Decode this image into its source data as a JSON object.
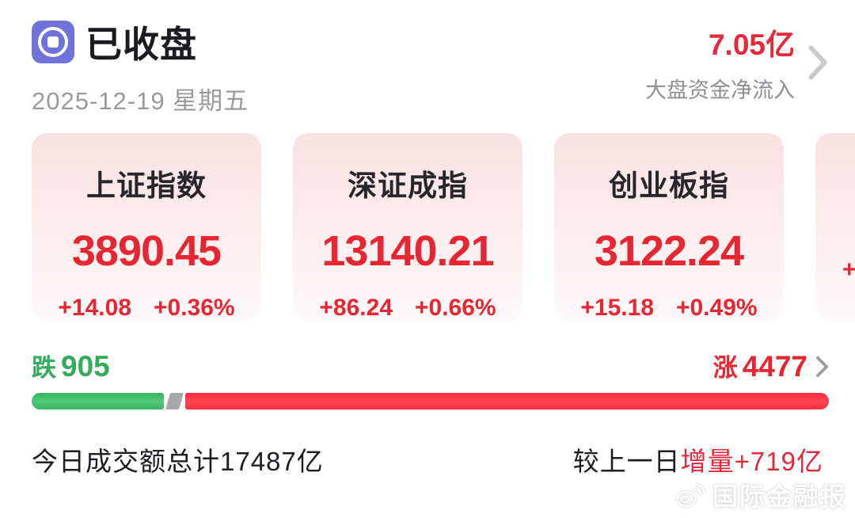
{
  "header": {
    "closed_title": "已收盘",
    "date": "2025-12-19 星期五",
    "net_inflow_value": "7.05亿",
    "net_inflow_label": "大盘资金净流入"
  },
  "indices": [
    {
      "name": "上证指数",
      "value": "3890.45",
      "change": "+14.08",
      "change_pct": "+0.36%"
    },
    {
      "name": "深证成指",
      "value": "13140.21",
      "change": "+86.24",
      "change_pct": "+0.66%"
    },
    {
      "name": "创业板指",
      "value": "3122.24",
      "change": "+15.18",
      "change_pct": "+0.49%"
    },
    {
      "name": "",
      "value": "",
      "change": "+",
      "change_pct": ""
    }
  ],
  "breadth": {
    "decliners_label": "跌",
    "decliners_count": "905",
    "advancers_label": "涨",
    "advancers_count": "4477",
    "bar": {
      "down_pct": 16.6,
      "flat_pct": 1.7
    }
  },
  "turnover": {
    "today_total": "今日成交额总计17487亿",
    "vs_prev_label": "较上一日",
    "vs_prev_delta": "增量+719亿"
  },
  "watermark": {
    "source": "国际金融报"
  },
  "colors": {
    "up_red_text": "#e62633",
    "inflow_red": "#e5293a",
    "down_green_text": "#35ab5d",
    "bar_green": "#3bb763",
    "bar_gray": "#a9a9a9",
    "bar_red": "#fa2e3e",
    "badge_icon_bg": "#6e72d9",
    "card_bg_top": "#f9e1e1",
    "date_gray": "#9a9a9e"
  }
}
